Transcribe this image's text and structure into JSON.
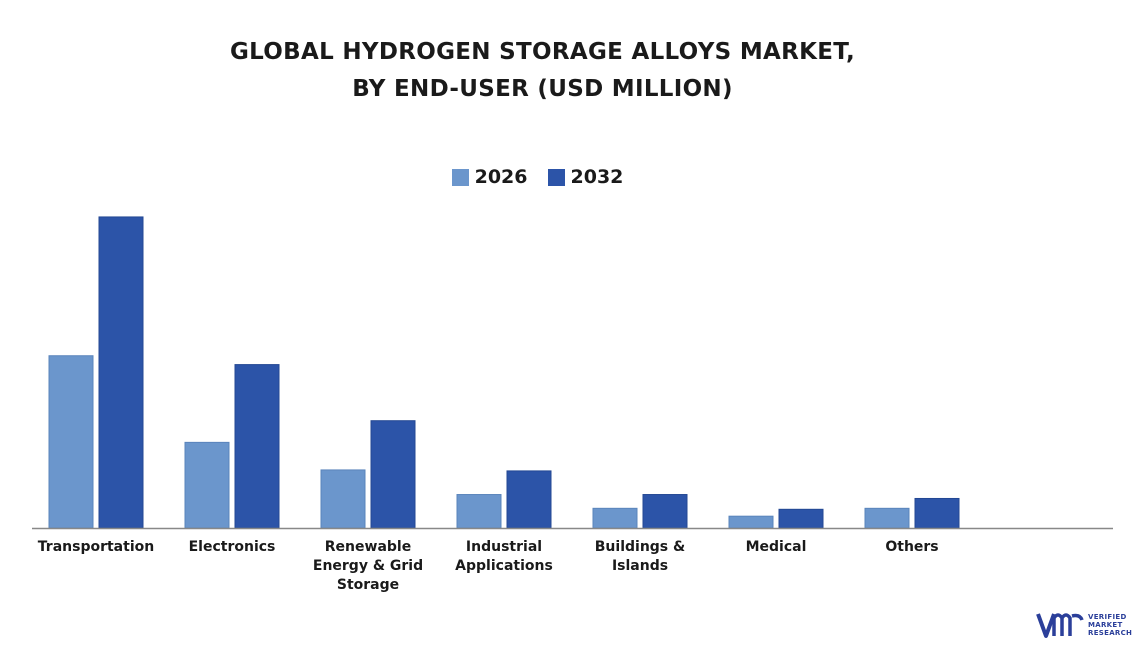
{
  "colors": {
    "series_2026": "#6b96cc",
    "series_2032": "#2c54a8",
    "axis": "#888888"
  },
  "chart_data": {
    "type": "bar",
    "title": [
      "GLOBAL HYDROGEN STORAGE ALLOYS MARKET,",
      "BY END-USER (USD MILLION)"
    ],
    "categories": [
      "Transportation",
      "Electronics",
      "Renewable\nEnergy & Grid\nStorage",
      "Industrial\nApplications",
      "Buildings &\nIslands",
      "Medical",
      "Others"
    ],
    "series": [
      {
        "name": "2026",
        "values": [
          175,
          87,
          59,
          34,
          20,
          12,
          20
        ]
      },
      {
        "name": "2032",
        "values": [
          316,
          166,
          109,
          58,
          34,
          19,
          30
        ]
      }
    ],
    "ylim": [
      0,
      320
    ],
    "grid": false,
    "legend": "top-center",
    "xlabel": "",
    "ylabel": ""
  },
  "logo": {
    "icon": "vmr-logo-icon",
    "lines": [
      "VERIFIED",
      "MARKET",
      "RESEARCH"
    ]
  }
}
